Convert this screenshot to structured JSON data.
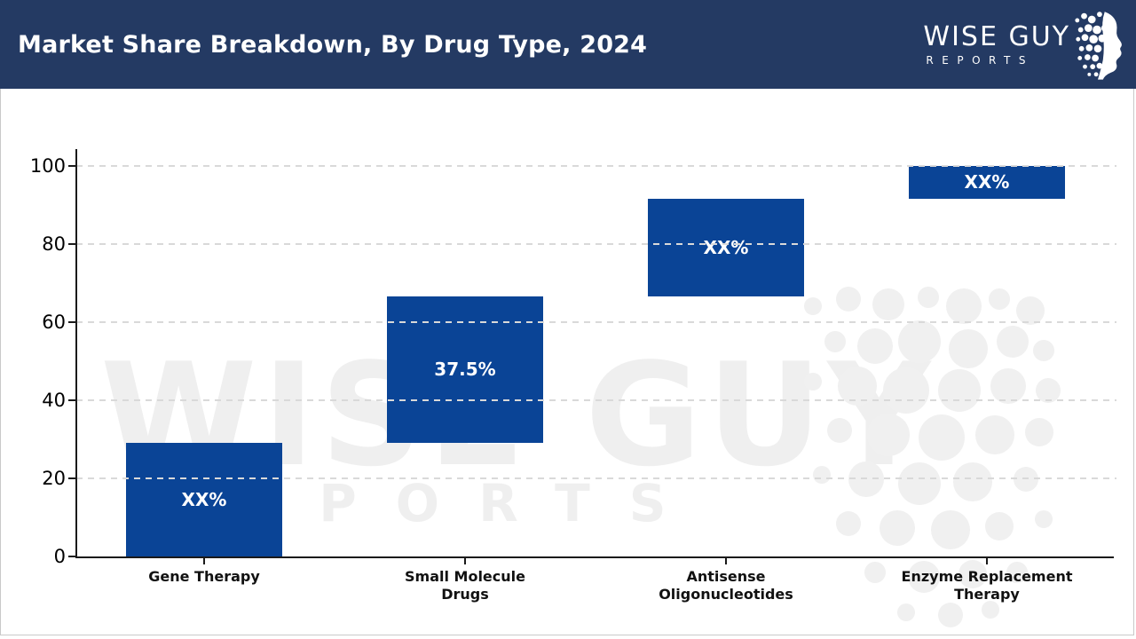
{
  "header": {
    "title": "Market Share Breakdown, By Drug Type, 2024",
    "logo": {
      "wordmark": "WISE GUY",
      "subtitle": "REPORTS"
    }
  },
  "watermark": {
    "wordmark": "WISE GUY",
    "subtitle": "REPORTS"
  },
  "chart_data": {
    "type": "bar",
    "variant": "waterfall",
    "title": "Market Share Breakdown, By Drug Type, 2024",
    "categories": [
      "Gene Therapy",
      "Small Molecule Drugs",
      "Antisense Oligonucleotides",
      "Enzyme Replacement Therapy"
    ],
    "category_lines": [
      [
        "Gene Therapy"
      ],
      [
        "Small Molecule",
        "Drugs"
      ],
      [
        "Antisense",
        "Oligonucleotides"
      ],
      [
        "Enzyme Replacement",
        "Therapy"
      ]
    ],
    "series": [
      {
        "name": "Market share (%)",
        "segments": [
          {
            "category": "Gene Therapy",
            "label": "XX%",
            "start": 0,
            "end": 29.2
          },
          {
            "category": "Small Molecule Drugs",
            "label": "37.5%",
            "start": 29.2,
            "end": 66.7
          },
          {
            "category": "Antisense Oligonucleotides",
            "label": "XX%",
            "start": 66.7,
            "end": 91.7
          },
          {
            "category": "Enzyme Replacement Therapy",
            "label": "XX%",
            "start": 91.7,
            "end": 100
          }
        ]
      }
    ],
    "xlabel": "",
    "ylabel": "",
    "ylim": [
      0,
      100
    ],
    "yticks": [
      0,
      20,
      40,
      60,
      80,
      100
    ],
    "grid": {
      "axis": "y",
      "style": "dashed",
      "color": "#d9d9d9"
    },
    "legend": "none",
    "bar_color": "#0a4496",
    "bar_label_color": "#ffffff"
  },
  "colors": {
    "header_bg": "#243a63",
    "bar": "#0a4496",
    "axis": "#1a1a1a",
    "panel_border": "#c9c9c9",
    "watermark": "#efefef"
  }
}
